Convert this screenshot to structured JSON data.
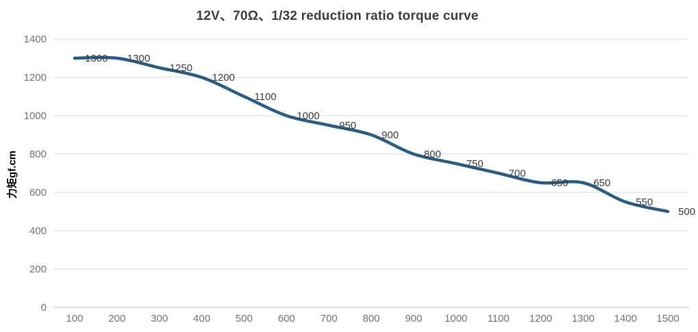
{
  "chart_data": {
    "type": "line",
    "title": "12V、70Ω、1/32 reduction ratio torque curve",
    "xlabel": "",
    "ylabel": "力矩gf.cm",
    "categories": [
      100,
      200,
      300,
      400,
      500,
      600,
      700,
      800,
      900,
      1000,
      1100,
      1200,
      1300,
      1400,
      1500
    ],
    "values": [
      1300,
      1300,
      1250,
      1200,
      1100,
      1000,
      950,
      900,
      800,
      750,
      700,
      650,
      650,
      550,
      500
    ],
    "ylim": [
      0,
      1400
    ],
    "ytick_step": 200,
    "grid": true,
    "legend": false,
    "smooth": true,
    "data_label_position": "right",
    "colors": {
      "line": "#255E8B",
      "data_label": "#404040",
      "tick_label": "#757575",
      "gridline": "#D9D9D9",
      "axis_line": "#BFBFBF",
      "title": "#404040",
      "background": "#FFFFFF"
    }
  }
}
